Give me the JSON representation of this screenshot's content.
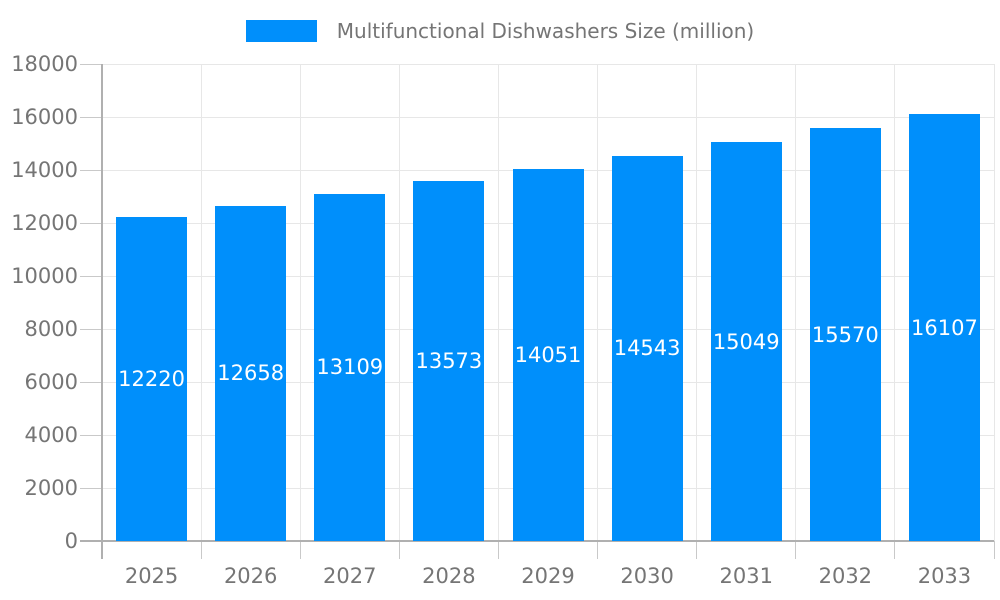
{
  "chart_data": {
    "type": "bar",
    "title": "",
    "legend": "Multifunctional Dishwashers Size (million)",
    "categories": [
      "2025",
      "2026",
      "2027",
      "2028",
      "2029",
      "2030",
      "2031",
      "2032",
      "2033"
    ],
    "values": [
      12220,
      12658,
      13109,
      13573,
      14051,
      14543,
      15049,
      15570,
      16107
    ],
    "series": [
      {
        "name": "Multifunctional Dishwashers Size (million)",
        "values": [
          12220,
          12658,
          13109,
          13573,
          14051,
          14543,
          15049,
          15570,
          16107
        ]
      }
    ],
    "xlabel": "",
    "ylabel": "",
    "ylim": [
      0,
      18000
    ],
    "ytick_step": 2000,
    "y_tick_labels": [
      "0",
      "2000",
      "4000",
      "6000",
      "8000",
      "10000",
      "12000",
      "14000",
      "16000",
      "18000"
    ],
    "grid": true,
    "legend_position": "top",
    "data_labels": "inside-center-white",
    "colors": {
      "bar": "#008FFB",
      "bar_label": "#FFFFFF",
      "axis_text": "#757575",
      "grid_line": "#E7E7E7",
      "axis_line": "#B0B0B0",
      "tick": "#C9C9C9",
      "background": "#FFFFFF"
    }
  }
}
